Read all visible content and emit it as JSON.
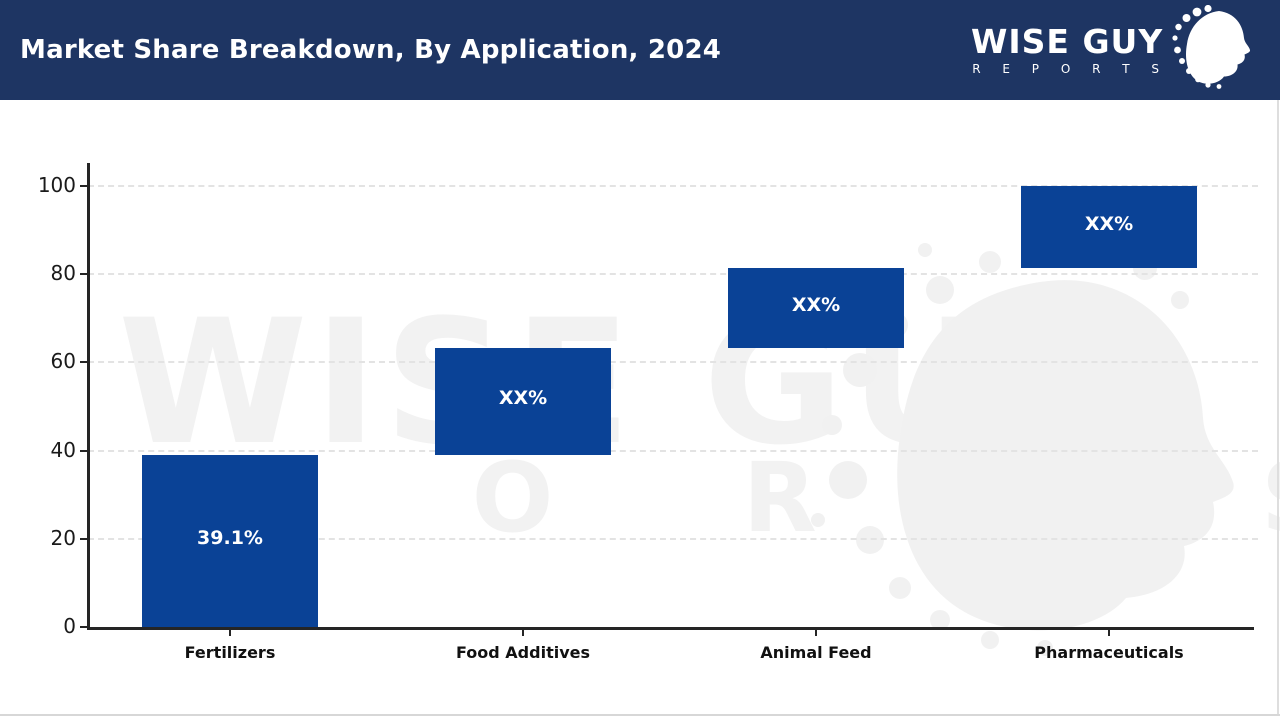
{
  "header": {
    "title": "Market Share Breakdown, By Application, 2024",
    "logo": {
      "line1": "WISE GUY",
      "line2": "R E P O R T S"
    }
  },
  "watermark": {
    "line1": "WISE GUY",
    "line2": "P O R T S"
  },
  "chart_data": {
    "type": "bar",
    "subtype": "waterfall",
    "title": "Market Share Breakdown, By Application, 2024",
    "categories": [
      "Fertilizers",
      "Food Additives",
      "Animal Feed",
      "Pharmaceuticals"
    ],
    "segments": [
      {
        "category": "Fertilizers",
        "start": 0,
        "end": 39.1,
        "label": "39.1%"
      },
      {
        "category": "Food Additives",
        "start": 39.1,
        "end": 63.2,
        "label": "XX%"
      },
      {
        "category": "Animal Feed",
        "start": 63.2,
        "end": 81.3,
        "label": "XX%"
      },
      {
        "category": "Pharmaceuticals",
        "start": 81.3,
        "end": 100,
        "label": "XX%"
      }
    ],
    "yticks": [
      0,
      20,
      40,
      60,
      80,
      100
    ],
    "ylim": [
      0,
      103
    ],
    "xlabel": "",
    "ylabel": "",
    "grid": true,
    "grid_style": "dashed",
    "legend": false,
    "bar_color": "#0a4296",
    "bar_label_color": "#ffffff",
    "axis_color": "#252525"
  }
}
